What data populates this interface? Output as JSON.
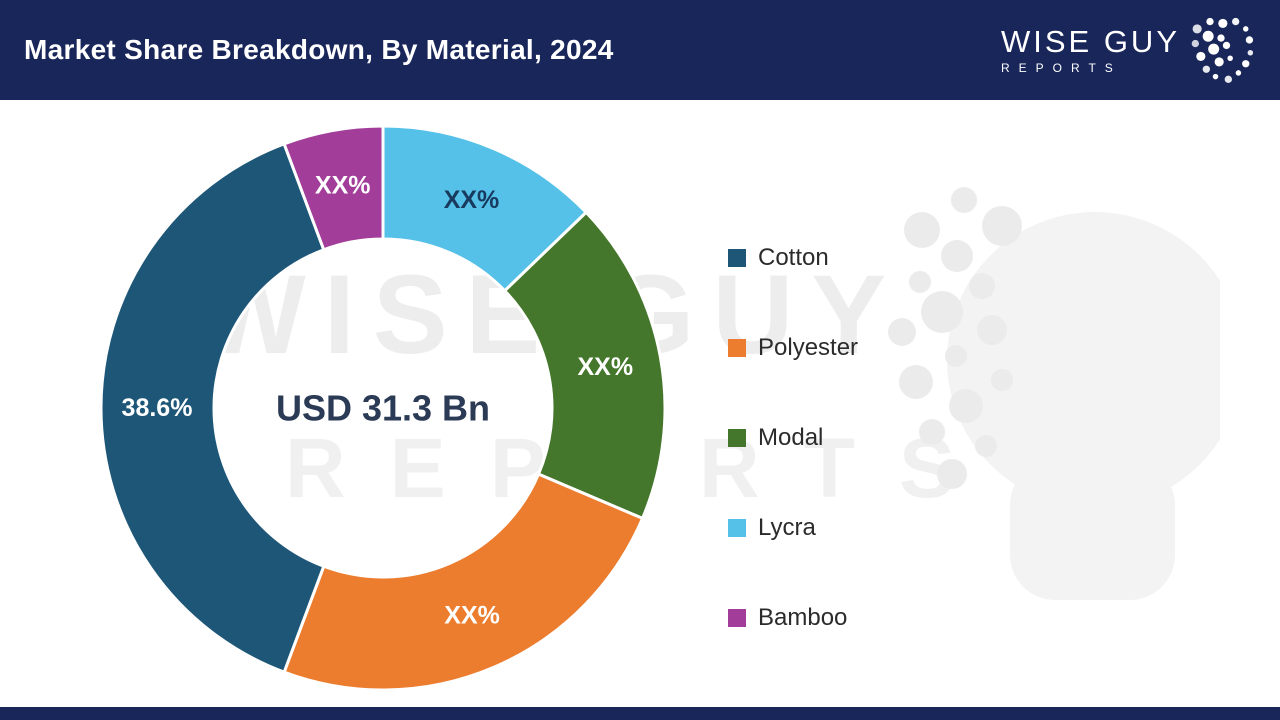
{
  "header": {
    "title": "Market Share Breakdown, By Material, 2024",
    "logo": {
      "name": "Wise Guy Reports",
      "line1": "WISE GUY",
      "line2": "REPORTS"
    }
  },
  "chart_data": {
    "type": "pie",
    "variant": "donut",
    "title": "Market Share Breakdown, By Material, 2024",
    "center_label": "USD 31.3 Bn",
    "center_label_color": "#2B3A55",
    "legend_position": "right",
    "segments": [
      {
        "label": "Cotton",
        "percent_label": "38.6%",
        "value": 38.6,
        "color": "#1D5677",
        "label_color": "#FFFFFF"
      },
      {
        "label": "Polyester",
        "percent_label": "XX%",
        "value": 24.3,
        "color": "#EC7D2E",
        "label_color": "#FFFFFF"
      },
      {
        "label": "Modal",
        "percent_label": "XX%",
        "value": 18.6,
        "color": "#44762B",
        "label_color": "#FFFFFF"
      },
      {
        "label": "Lycra",
        "percent_label": "XX%",
        "value": 12.8,
        "color": "#55C0E8",
        "label_color": "#173A5E"
      },
      {
        "label": "Bamboo",
        "percent_label": "XX%",
        "value": 5.7,
        "color": "#A23D99",
        "label_color": "#FFFFFF"
      }
    ],
    "draw_order": [
      "Lycra",
      "Modal",
      "Polyester",
      "Cotton",
      "Bamboo"
    ]
  },
  "watermark": {
    "line1": "WISE GUY",
    "line2": "REPORTS"
  },
  "colors": {
    "header_bg": "#18265A",
    "footer_bg": "#18265A"
  }
}
